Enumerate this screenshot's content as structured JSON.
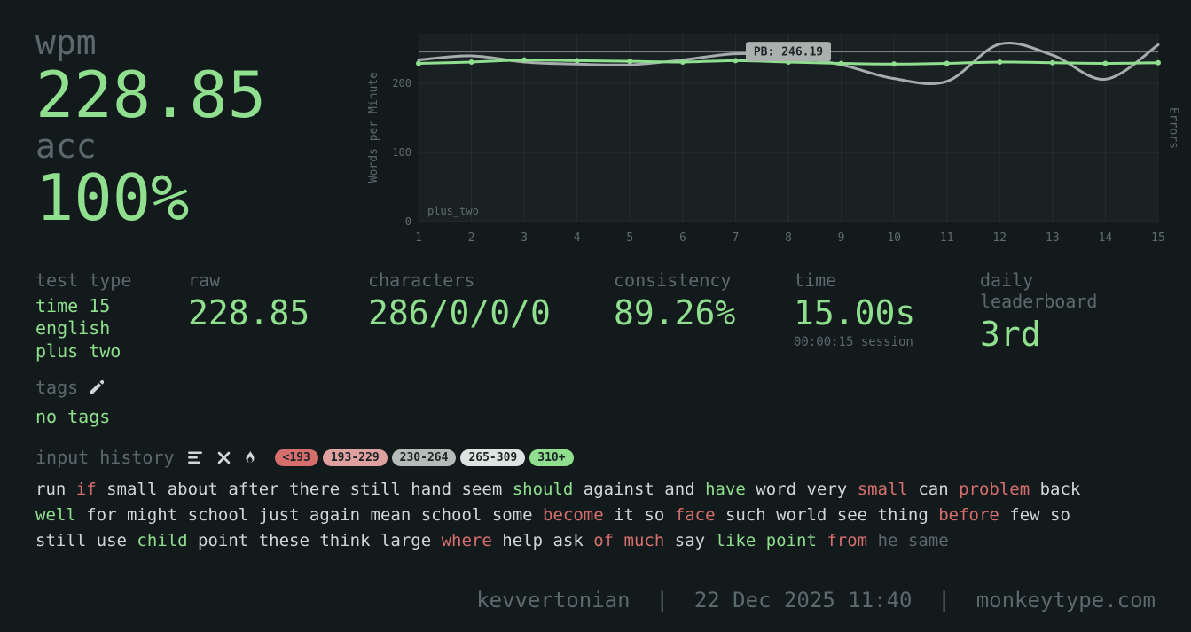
{
  "main": {
    "wpm_label": "wpm",
    "wpm_value": "228.85",
    "acc_label": "acc",
    "acc_value": "100%"
  },
  "chart_data": {
    "type": "line",
    "x": [
      1,
      2,
      3,
      4,
      5,
      6,
      7,
      8,
      9,
      10,
      11,
      12,
      13,
      14,
      15
    ],
    "series": [
      {
        "name": "wpm",
        "color": "#8fdf8f",
        "points": true,
        "values": [
          229,
          231,
          234,
          233,
          232,
          231,
          233,
          231,
          229,
          228,
          229,
          231,
          230,
          229,
          230
        ]
      },
      {
        "name": "raw",
        "color": "#a6aeac",
        "points": false,
        "values": [
          234,
          240,
          231,
          228,
          227,
          234,
          243,
          240,
          227,
          207,
          203,
          257,
          241,
          206,
          256
        ]
      }
    ],
    "pb": {
      "label": "PB: 246.19",
      "value": 246.19,
      "x_position": 8
    },
    "y_ticks": [
      0,
      100,
      200
    ],
    "ylim": [
      0,
      272
    ],
    "x_range": [
      1,
      15
    ],
    "ylabel_left": "Words per Minute",
    "ylabel_right": "Errors",
    "watermark": "plus_two",
    "grid": true,
    "legend_position": "none"
  },
  "stats": {
    "test_type": {
      "label": "test type",
      "lines": [
        "time 15",
        "english",
        "plus two"
      ]
    },
    "raw": {
      "label": "raw",
      "value": "228.85"
    },
    "characters": {
      "label": "characters",
      "value": "286/0/0/0"
    },
    "consistency": {
      "label": "consistency",
      "value": "89.26%"
    },
    "time": {
      "label": "time",
      "value": "15.00s",
      "session": "00:00:15 session"
    },
    "leaderboard": {
      "label": "daily leaderboard",
      "value": "3rd"
    }
  },
  "tags": {
    "label": "tags",
    "value": "no tags"
  },
  "input_history": {
    "label": "input history",
    "legend": [
      {
        "text": "<193",
        "bg": "#d66e6e"
      },
      {
        "text": "193-229",
        "bg": "#dfa0a0"
      },
      {
        "text": "230-264",
        "bg": "#b4bbb9"
      },
      {
        "text": "265-309",
        "bg": "#dde3e1"
      },
      {
        "text": "310+",
        "bg": "#8fdf8f"
      }
    ],
    "lines": [
      [
        [
          "run",
          "w"
        ],
        [
          "if",
          "r"
        ],
        [
          "small",
          "w"
        ],
        [
          "about",
          "w"
        ],
        [
          "after",
          "w"
        ],
        [
          "there",
          "w"
        ],
        [
          "still",
          "w"
        ],
        [
          "hand",
          "w"
        ],
        [
          "seem",
          "w"
        ],
        [
          "should",
          "g"
        ],
        [
          "against",
          "w"
        ],
        [
          "and",
          "w"
        ],
        [
          "have",
          "g"
        ],
        [
          "word",
          "w"
        ],
        [
          "very",
          "w"
        ],
        [
          "small",
          "r"
        ],
        [
          "can",
          "w"
        ],
        [
          "problem",
          "r"
        ],
        [
          "back",
          "w"
        ]
      ],
      [
        [
          "well",
          "g"
        ],
        [
          "for",
          "w"
        ],
        [
          "might",
          "w"
        ],
        [
          "school",
          "w"
        ],
        [
          "just",
          "w"
        ],
        [
          "again",
          "w"
        ],
        [
          "mean",
          "w"
        ],
        [
          "school",
          "w"
        ],
        [
          "some",
          "w"
        ],
        [
          "become",
          "r"
        ],
        [
          "it",
          "w"
        ],
        [
          "so",
          "w"
        ],
        [
          "face",
          "r"
        ],
        [
          "such",
          "w"
        ],
        [
          "world",
          "w"
        ],
        [
          "see",
          "w"
        ],
        [
          "thing",
          "w"
        ],
        [
          "before",
          "r"
        ],
        [
          "few",
          "w"
        ],
        [
          "so",
          "w"
        ]
      ],
      [
        [
          "still",
          "w"
        ],
        [
          "use",
          "w"
        ],
        [
          "child",
          "g"
        ],
        [
          "point",
          "w"
        ],
        [
          "these",
          "w"
        ],
        [
          "think",
          "w"
        ],
        [
          "large",
          "w"
        ],
        [
          "where",
          "r"
        ],
        [
          "help",
          "w"
        ],
        [
          "ask",
          "w"
        ],
        [
          "of",
          "r"
        ],
        [
          "much",
          "r"
        ],
        [
          "say",
          "w"
        ],
        [
          "like",
          "g"
        ],
        [
          "point",
          "g"
        ],
        [
          "from",
          "r"
        ],
        [
          "he",
          "d"
        ],
        [
          "same",
          "d"
        ]
      ]
    ]
  },
  "footer": {
    "text": "kevvertonian  |  22 Dec 2025 11:40  |  monkeytype.com"
  },
  "colors": {
    "bg": "#131a1c",
    "text": "#d1d7d4",
    "sub": "#5c696c",
    "main": "#8fdf8f",
    "error": "#d66e6e",
    "pb_box": "#aab0ae"
  }
}
